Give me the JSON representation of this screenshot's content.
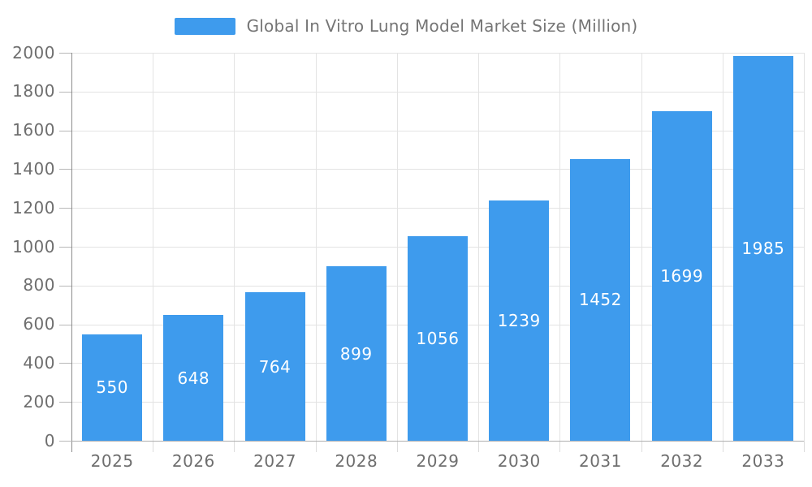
{
  "chart_data": {
    "type": "bar",
    "title": "Global In Vitro Lung Model Market Size (Million)",
    "categories": [
      "2025",
      "2026",
      "2027",
      "2028",
      "2029",
      "2030",
      "2031",
      "2032",
      "2033"
    ],
    "values": [
      550,
      648,
      764,
      899,
      1056,
      1239,
      1452,
      1699,
      1985
    ],
    "series": [
      {
        "name": "Global In Vitro Lung Model Market Size (Million)",
        "values": [
          550,
          648,
          764,
          899,
          1056,
          1239,
          1452,
          1699,
          1985
        ]
      }
    ],
    "xlabel": "",
    "ylabel": "",
    "ylim": [
      0,
      2000
    ],
    "ytick_step": 200,
    "yticks": [
      0,
      200,
      400,
      600,
      800,
      1000,
      1200,
      1400,
      1600,
      1800,
      2000
    ],
    "grid": "horizontal and vertical light gridlines",
    "legend_position": "top-center",
    "bar_label_position": "inside-center",
    "colors": {
      "bar": "#3E9BED",
      "bar_label_text": "#FFFFFF",
      "axis_text": "#6E6E6E",
      "title_text": "#757575",
      "gridline": "#E3E3E3",
      "x_axis_line": "#B0B0B0",
      "y_axis_line": "#8C8C8C",
      "y_tick": "#B8B8B8",
      "x_tick": "#DCDCDC",
      "background": "#FFFFFF"
    }
  }
}
